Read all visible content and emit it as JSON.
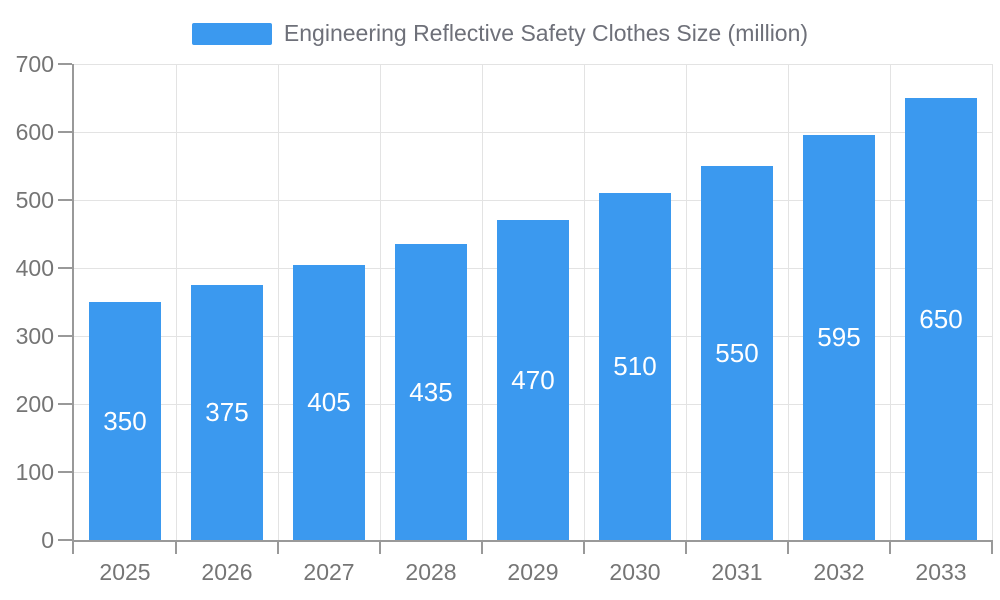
{
  "page": {
    "background": "#ffffff"
  },
  "legend": {
    "label": "Engineering Reflective Safety Clothes Size (million)"
  },
  "chart_data": {
    "type": "bar",
    "title": "Engineering Reflective Safety Clothes Size (million)",
    "categories": [
      "2025",
      "2026",
      "2027",
      "2028",
      "2029",
      "2030",
      "2031",
      "2032",
      "2033"
    ],
    "series": [
      {
        "name": "Engineering Reflective Safety Clothes Size (million)",
        "values": [
          350,
          375,
          405,
          435,
          470,
          510,
          550,
          595,
          650
        ]
      }
    ],
    "xlabel": "",
    "ylabel": "",
    "ylim": [
      0,
      700
    ],
    "yticks": [
      0,
      100,
      200,
      300,
      400,
      500,
      600,
      700
    ],
    "grid": true,
    "grid_horizontal": true,
    "grid_vertical": true,
    "legend_position": "top-center",
    "value_label_position": "inside-center",
    "colors": {
      "bar": "#3b99ef",
      "axis": "#999999",
      "grid": "#e3e3e3",
      "tick_label": "#757575",
      "legend_text": "#6e7079",
      "value_label": "#ffffff",
      "background": "#ffffff"
    }
  }
}
